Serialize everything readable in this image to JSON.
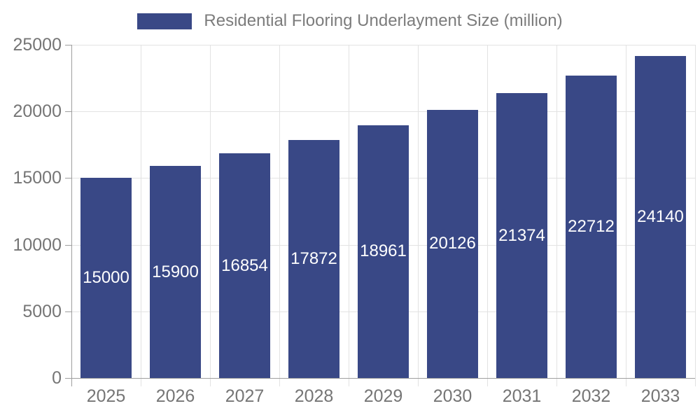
{
  "page": {
    "background": "#FFFFFF"
  },
  "chart_data": {
    "type": "bar",
    "title": "Residential Flooring Underlayment Size (million)",
    "series": [
      {
        "name": "Residential Flooring Underlayment Size (million)",
        "values": [
          15000,
          15900,
          16854,
          17872,
          18961,
          20126,
          21374,
          22712,
          24140
        ]
      }
    ],
    "categories": [
      "2025",
      "2026",
      "2027",
      "2028",
      "2029",
      "2030",
      "2031",
      "2032",
      "2033"
    ],
    "xlabel": "",
    "ylabel": "",
    "ylim": [
      0,
      25000
    ],
    "yticks": [
      0,
      5000,
      10000,
      15000,
      20000,
      25000
    ],
    "grid": true,
    "legend_position": "top-center",
    "value_labels": "inside-middle"
  },
  "colors": {
    "bar": "#394886",
    "grid_line": "#E2E2E2",
    "axis_line": "#9E9E9E",
    "tick_label": "#757575",
    "legend_text": "#7C7C7C",
    "value_label": "#FFFFFF",
    "background": "#FFFFFF"
  }
}
